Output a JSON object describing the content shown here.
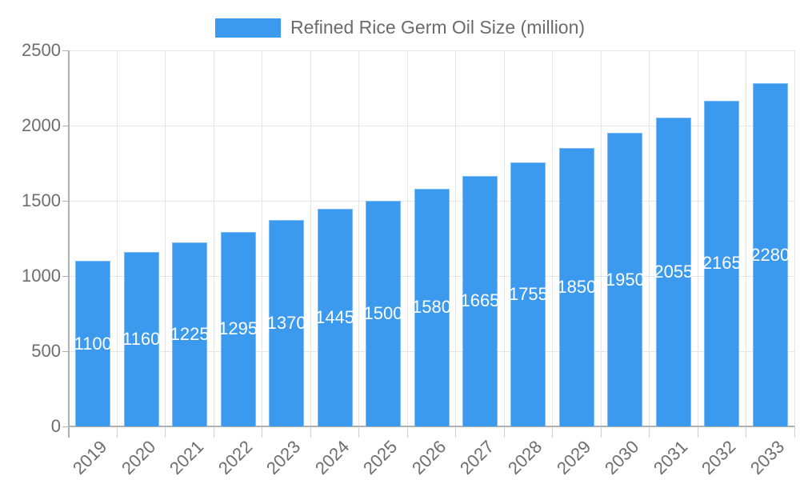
{
  "legend": {
    "label": "Refined Rice Germ Oil Size (million)",
    "swatch_color": "#3B99EE"
  },
  "chart_data": {
    "type": "bar",
    "title": "Refined Rice Germ Oil Size (million)",
    "categories": [
      "2019",
      "2020",
      "2021",
      "2022",
      "2023",
      "2024",
      "2025",
      "2026",
      "2027",
      "2028",
      "2029",
      "2030",
      "2031",
      "2032",
      "2033"
    ],
    "series": [
      {
        "name": "Refined Rice Germ Oil Size (million)",
        "values": [
          1100,
          1160,
          1225,
          1295,
          1370,
          1445,
          1500,
          1580,
          1665,
          1755,
          1850,
          1950,
          2055,
          2165,
          2280
        ]
      }
    ],
    "xlabel": "",
    "ylabel": "",
    "ylim": [
      0,
      2500
    ],
    "yticks": [
      0,
      500,
      1000,
      1500,
      2000,
      2500
    ],
    "grid": true,
    "legend_position": "top",
    "bar_color": "#3B99EE",
    "bar_edge_color": "#7fbcf5",
    "bar_label_color": "#ffffff",
    "grid_color": "#e5e5e5",
    "axis_color": "#b0b0b0",
    "tick_label_color": "#6e6e6e"
  }
}
